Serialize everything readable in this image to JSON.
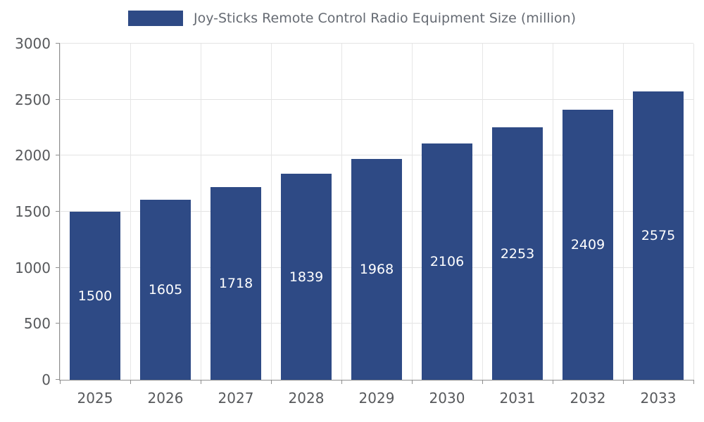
{
  "chart_data": {
    "type": "bar",
    "title": "Joy-Sticks Remote Control Radio Equipment Size (million)",
    "categories": [
      "2025",
      "2026",
      "2027",
      "2028",
      "2029",
      "2030",
      "2031",
      "2032",
      "2033"
    ],
    "values": [
      1500,
      1605,
      1718,
      1839,
      1968,
      2106,
      2253,
      2409,
      2575
    ],
    "xlabel": "",
    "ylabel": "",
    "ylim": [
      0,
      3000
    ],
    "y_ticks": [
      0,
      500,
      1000,
      1500,
      2000,
      2500,
      3000
    ],
    "grid": true,
    "legend_position": "top",
    "bar_color": "#2e4a85",
    "value_label_color": "#ffffff",
    "value_label_position": "center-inside"
  }
}
